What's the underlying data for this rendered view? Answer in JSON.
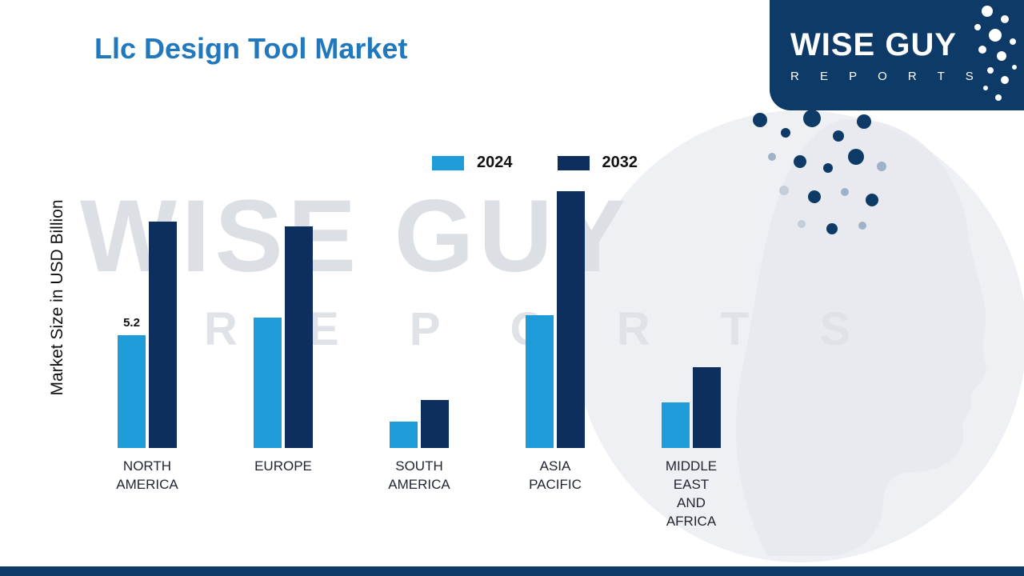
{
  "page": {
    "title": "Llc Design Tool Market"
  },
  "brand": {
    "name_line": "WISE GUY",
    "reports_line": "R E P O R T S"
  },
  "watermark": {
    "name_line": "WISE GUY",
    "reports_line": "R E P O R T S"
  },
  "colors": {
    "accent_blue": "#1d9cd9",
    "navy": "#0e2f5d",
    "brand_navy": "#0d3a66",
    "title_blue": "#2278bd"
  },
  "chart_data": {
    "type": "bar",
    "title": "Llc Design Tool Market",
    "ylabel": "Market Size in USD Billion",
    "ylim": [
      0,
      12.5
    ],
    "grid": false,
    "legend_position": "top-center",
    "categories": [
      "NORTH AMERICA",
      "EUROPE",
      "SOUTH AMERICA",
      "ASIA PACIFIC",
      "MIDDLE EAST AND AFRICA"
    ],
    "label_lines": [
      [
        "NORTH",
        "AMERICA"
      ],
      [
        "EUROPE"
      ],
      [
        "SOUTH",
        "AMERICA"
      ],
      [
        "ASIA",
        "PACIFIC"
      ],
      [
        "MIDDLE",
        "EAST",
        "AND",
        "AFRICA"
      ]
    ],
    "series": [
      {
        "name": "2024",
        "color": "#1d9cd9",
        "values": [
          5.2,
          6.0,
          1.2,
          6.1,
          2.1
        ]
      },
      {
        "name": "2032",
        "color": "#0e2f5d",
        "values": [
          10.4,
          10.2,
          2.2,
          11.8,
          3.7
        ]
      }
    ],
    "annotations": [
      {
        "category_index": 0,
        "series_index": 0,
        "text": "5.2"
      }
    ]
  }
}
